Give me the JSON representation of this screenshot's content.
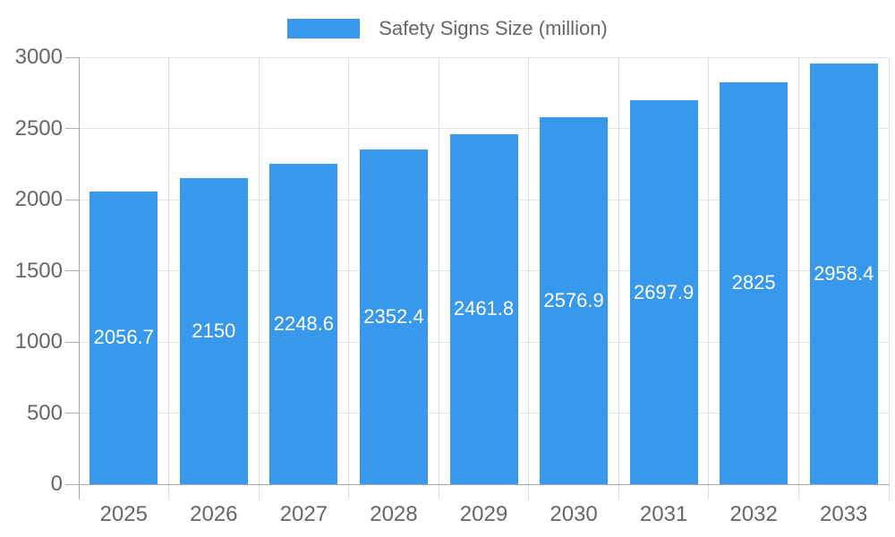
{
  "chart_data": {
    "type": "bar",
    "legend": "Safety Signs Size (million)",
    "categories": [
      "2025",
      "2026",
      "2027",
      "2028",
      "2029",
      "2030",
      "2031",
      "2032",
      "2033"
    ],
    "values": [
      2056.7,
      2150,
      2248.6,
      2352.4,
      2461.8,
      2576.9,
      2697.9,
      2825,
      2958.4
    ],
    "value_labels": [
      "2056.7",
      "2150",
      "2248.6",
      "2352.4",
      "2461.8",
      "2576.9",
      "2697.9",
      "2825",
      "2958.4"
    ],
    "ylim": [
      0,
      3000
    ],
    "yticks": [
      0,
      500,
      1000,
      1500,
      2000,
      2500,
      3000
    ],
    "grid": true,
    "legend_position": "top",
    "value_label_position": "inside-middle",
    "colors": {
      "bar": "#3899EC",
      "value_label": "#FFFFFF",
      "axis_text": "#666666",
      "grid_line": "#E3E3E3",
      "axis_line": "#A6A6A6",
      "tick_line": "#B3B3B3",
      "background": "#FFFFFF"
    }
  }
}
